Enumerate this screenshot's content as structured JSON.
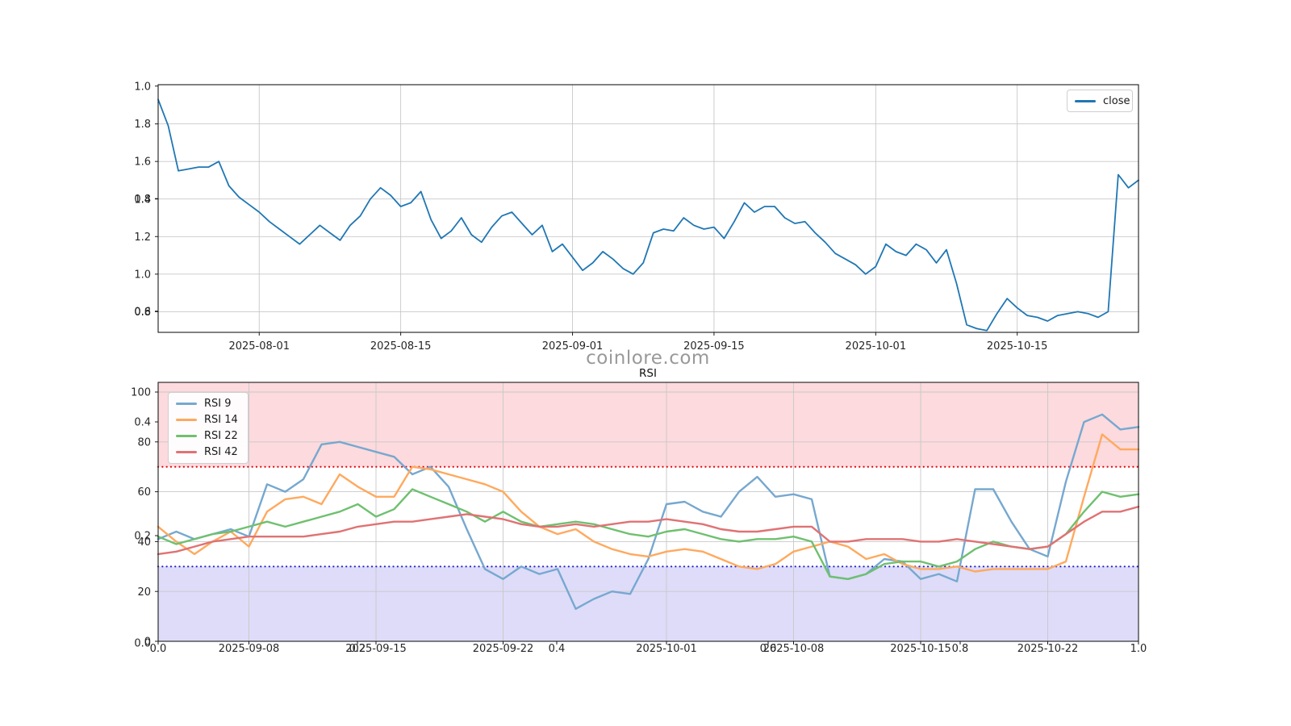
{
  "watermark": "coinlore.com",
  "rsi_title": "RSI",
  "colors": {
    "grid": "#c8c8c8",
    "spine": "#1b1b1b",
    "tick_label": "#262626",
    "overbought_band": "#fcdadd",
    "oversold_band": "#dedcf8",
    "overbought_line": "#e8000b",
    "oversold_line": "#2222cc",
    "watermark_color": "#8f8f8f"
  },
  "chart_data": [
    {
      "type": "line",
      "title": "",
      "x_range": [
        "2025-07-22",
        "2025-10-27"
      ],
      "x_tick_labels": [
        "2025-08-01",
        "2025-08-15",
        "2025-09-01",
        "2025-09-15",
        "2025-10-01",
        "2025-10-15"
      ],
      "x_tick_days": [
        10,
        24,
        41,
        55,
        71,
        85
      ],
      "y_tick_values": [
        1.8,
        1.6,
        1.4,
        1.2,
        1.0,
        0.8
      ],
      "y_tick_labels": [
        "1.8",
        "1.6",
        "1.4",
        "1.2",
        "1.0",
        "0.8"
      ],
      "y_secondary_tick_labels": [
        "1.0",
        "0.8",
        "0.6"
      ],
      "ylim": [
        0.69,
        2.01
      ],
      "grid": true,
      "legend_position": "upper right",
      "series": [
        {
          "name": "close",
          "color": "#1f77b4",
          "values": [
            1.93,
            1.79,
            1.55,
            1.56,
            1.57,
            1.57,
            1.6,
            1.47,
            1.41,
            1.37,
            1.33,
            1.28,
            1.24,
            1.2,
            1.16,
            1.21,
            1.26,
            1.22,
            1.18,
            1.26,
            1.31,
            1.4,
            1.46,
            1.42,
            1.36,
            1.38,
            1.44,
            1.29,
            1.19,
            1.23,
            1.3,
            1.21,
            1.17,
            1.25,
            1.31,
            1.33,
            1.27,
            1.21,
            1.26,
            1.12,
            1.16,
            1.09,
            1.02,
            1.06,
            1.12,
            1.08,
            1.03,
            1.0,
            1.06,
            1.22,
            1.24,
            1.23,
            1.3,
            1.26,
            1.24,
            1.25,
            1.19,
            1.28,
            1.38,
            1.33,
            1.36,
            1.36,
            1.3,
            1.27,
            1.28,
            1.22,
            1.17,
            1.11,
            1.08,
            1.05,
            1.0,
            1.04,
            1.16,
            1.12,
            1.1,
            1.16,
            1.13,
            1.06,
            1.13,
            0.95,
            0.73,
            0.71,
            0.7,
            0.79,
            0.87,
            0.82,
            0.78,
            0.77,
            0.75,
            0.78,
            0.79,
            0.8,
            0.79,
            0.77,
            0.8,
            1.53,
            1.46,
            1.5
          ]
        }
      ]
    },
    {
      "type": "line",
      "title": "RSI",
      "x_range": [
        "2025-09-03",
        "2025-10-27"
      ],
      "x_tick_labels": [
        "2025-09-08",
        "2025-09-15",
        "2025-09-22",
        "2025-10-01",
        "2025-10-08",
        "2025-10-15",
        "2025-10-22"
      ],
      "x_tick_days": [
        5,
        12,
        19,
        28,
        35,
        42,
        49
      ],
      "x_secondary_tick_labels": [
        "0.0",
        "0.2",
        "0.4",
        "0.6",
        "0.8",
        "1.0"
      ],
      "y_tick_values": [
        100,
        80,
        60,
        40,
        20,
        0
      ],
      "y_tick_labels": [
        "100",
        "80",
        "60",
        "40",
        "20",
        "0"
      ],
      "y_secondary_tick_labels": [
        "0.4",
        "0.2",
        "0.0"
      ],
      "ylim": [
        0,
        104
      ],
      "grid": true,
      "legend_position": "upper left",
      "overbought_level": 70,
      "oversold_level": 30,
      "series": [
        {
          "name": "RSI 9",
          "color": "#76a8d0",
          "values": [
            41,
            44,
            41,
            43,
            45,
            42,
            63,
            60,
            65,
            79,
            80,
            78,
            76,
            74,
            67,
            70,
            62,
            45,
            29,
            25,
            30,
            27,
            29,
            13,
            17,
            20,
            19,
            33,
            55,
            56,
            52,
            50,
            60,
            66,
            58,
            59,
            57,
            26,
            25,
            27,
            33,
            32,
            25,
            27,
            24,
            61,
            61,
            48,
            37,
            34,
            64,
            88,
            91,
            85,
            86
          ]
        },
        {
          "name": "RSI 14",
          "color": "#ffa95e",
          "values": [
            46,
            40,
            35,
            40,
            44,
            38,
            52,
            57,
            58,
            55,
            67,
            62,
            58,
            58,
            70,
            69,
            67,
            65,
            63,
            60,
            52,
            46,
            43,
            45,
            40,
            37,
            35,
            34,
            36,
            37,
            36,
            33,
            30,
            29,
            31,
            36,
            38,
            40,
            38,
            33,
            35,
            31,
            29,
            29,
            30,
            28,
            29,
            29,
            29,
            29,
            32,
            58,
            83,
            77,
            77
          ]
        },
        {
          "name": "RSI 22",
          "color": "#6fc06f",
          "values": [
            42,
            39,
            41,
            43,
            44,
            46,
            48,
            46,
            48,
            50,
            52,
            55,
            50,
            53,
            61,
            58,
            55,
            52,
            48,
            52,
            48,
            46,
            47,
            48,
            47,
            45,
            43,
            42,
            44,
            45,
            43,
            41,
            40,
            41,
            41,
            42,
            40,
            26,
            25,
            27,
            31,
            32,
            32,
            30,
            32,
            37,
            40,
            38,
            37,
            38,
            43,
            52,
            60,
            58,
            59
          ]
        },
        {
          "name": "RSI 42",
          "color": "#e07273",
          "values": [
            35,
            36,
            38,
            40,
            41,
            42,
            42,
            42,
            42,
            43,
            44,
            46,
            47,
            48,
            48,
            49,
            50,
            51,
            50,
            49,
            47,
            46,
            46,
            47,
            46,
            47,
            48,
            48,
            49,
            48,
            47,
            45,
            44,
            44,
            45,
            46,
            46,
            40,
            40,
            41,
            41,
            41,
            40,
            40,
            41,
            40,
            39,
            38,
            37,
            38,
            43,
            48,
            52,
            52,
            54
          ]
        }
      ]
    }
  ]
}
